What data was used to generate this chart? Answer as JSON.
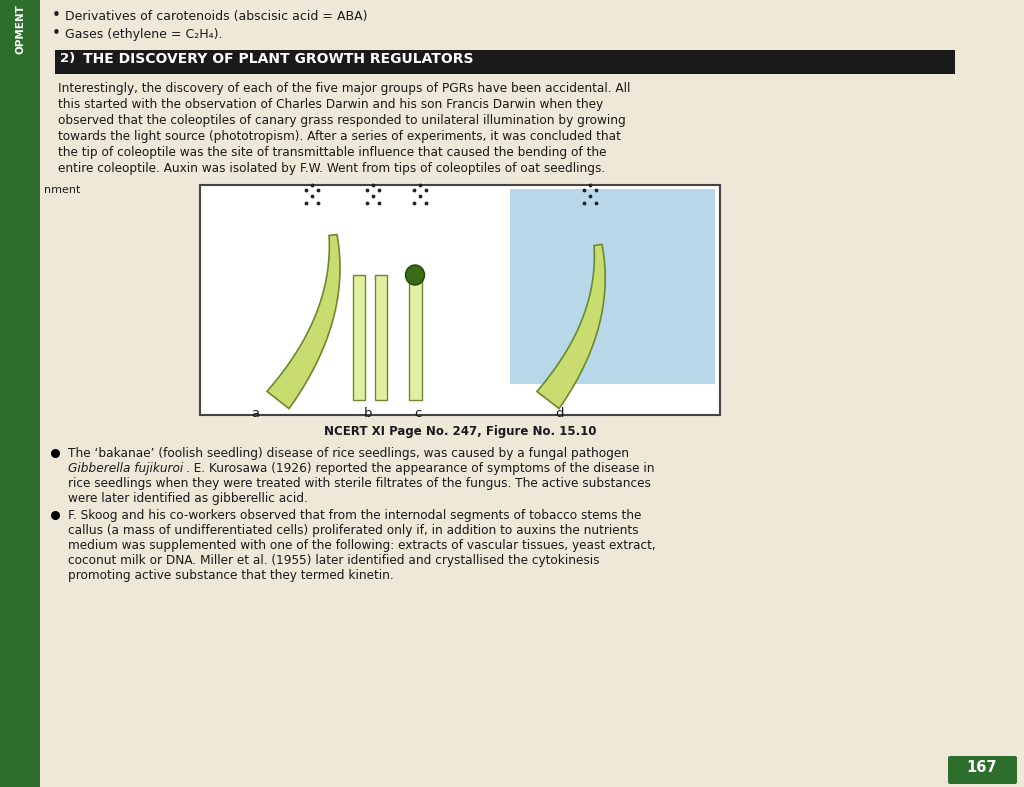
{
  "page_bg": "#ede8d8",
  "header_bg": "#2d6e2d",
  "header_text_color": "#ffffff",
  "header_text": "OPMENT",
  "bullet1": "Derivatives of carotenoids (abscisic acid = ABA)",
  "bullet2": "Gases (ethylene = C₂H₄).",
  "section_title": "THE DISCOVERY OF PLANT GROWTH REGULATORS",
  "section_num": "2)",
  "section_bg": "#1a1a1a",
  "section_text_color": "#ffffff",
  "para1_lines": [
    "Interestingly, the discovery of each of the five major groups of PGRs have been accidental. All",
    "this started with the observation of Charles Darwin and his son Francis Darwin when they",
    "observed that the coleoptiles of canary grass responded to unilateral illumination by growing",
    "towards the light source (phototropism). After a series of experiments, it was concluded that",
    "the tip of coleoptile was the site of transmittable influence that caused the bending of the",
    "entire coleoptile. Auxin was isolated by F.W. Went from tips of coleoptiles of oat seedlings."
  ],
  "figure_caption": "NCERT XI Page No. 247, Figure No. 15.10",
  "fig_labels": [
    "a",
    "b",
    "c",
    "d"
  ],
  "bullet3_line1": "The ‘bakanae’ (foolish seedling) disease of rice seedlings, was caused by a fungal pathogen",
  "bullet3_italic": "Gibberella fujikuroi",
  "bullet3_line2": ". E. Kurosawa (1926) reported the appearance of symptoms of the disease in",
  "bullet3_line3": "rice seedlings when they were treated with sterile filtrates of the fungus. The active substances",
  "bullet3_line4": "were later identified as gibberellic acid.",
  "bullet4_lines": [
    "F. Skoog and his co-workers observed that from the internodal segments of tobacco stems the",
    "callus (a mass of undifferentiated cells) proliferated only if, in addition to auxins the nutrients",
    "medium was supplemented with one of the following: extracts of vascular tissues, yeast extract,",
    "coconut milk or DNA. Miller et al. (1955) later identified and crystallised the cytokinesis",
    "promoting active substance that they termed kinetin."
  ],
  "page_num": "167",
  "page_num_bg": "#2d6e2d",
  "left_margin_text": "nment",
  "text_color": "#1a1a1a",
  "fig_bg": "#ffffff",
  "fig_blue_bg": "#b8d8ea",
  "plant_fill": "#c8dc70",
  "plant_edge": "#6a8a30",
  "plant_light_fill": "#e0f0a0",
  "plant_dark_cap": "#3a6a15",
  "dot_color": "#222222"
}
